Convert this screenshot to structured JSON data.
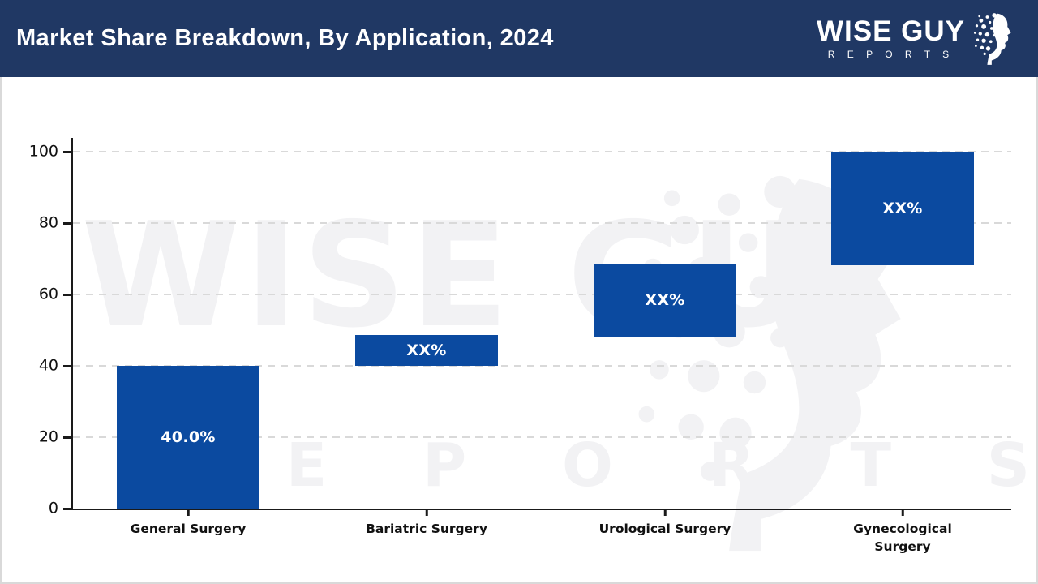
{
  "header": {
    "title": "Market Share Breakdown, By Application, 2024",
    "logo": {
      "wordmark": "WISE GUY",
      "subtext": "R E P O R T S",
      "icon": "dotted-face-profile-icon",
      "color": "#ffffff"
    }
  },
  "watermark": {
    "wordmark": "WISE GUY",
    "subtext": "R E P O R T S",
    "icon": "dotted-face-profile-icon",
    "color": "#f2f2f4"
  },
  "colors": {
    "header_bg": "#203864",
    "bar": "#0b4aa0",
    "bar_label": "#ffffff",
    "grid": "#d9d9d9",
    "axis": "#1a1a1a",
    "tick_label": "#111111"
  },
  "chart_data": {
    "type": "bar",
    "subtype": "waterfall",
    "title": "Market Share Breakdown, By Application, 2024",
    "categories": [
      "General Surgery",
      "Bariatric Surgery",
      "Urological Surgery",
      "Gynecological Surgery"
    ],
    "tick_labels": [
      "General Surgery",
      "Bariatric Surgery",
      "Urological Surgery",
      "Gynecological\nSurgery"
    ],
    "segments": [
      {
        "category": "General Surgery",
        "start": 0,
        "end": 40,
        "label": "40.0%"
      },
      {
        "category": "Bariatric Surgery",
        "start": 40,
        "end": 48.6,
        "label": "XX%"
      },
      {
        "category": "Urological Surgery",
        "start": 48.2,
        "end": 68.4,
        "label": "XX%"
      },
      {
        "category": "Gynecological Surgery",
        "start": 68.2,
        "end": 100,
        "label": "XX%"
      }
    ],
    "xlabel": "",
    "ylabel": "",
    "yticks": [
      0,
      20,
      40,
      60,
      80,
      100
    ],
    "ylim": [
      0,
      104
    ],
    "grid": "horizontal-dashed",
    "legend": "none"
  }
}
